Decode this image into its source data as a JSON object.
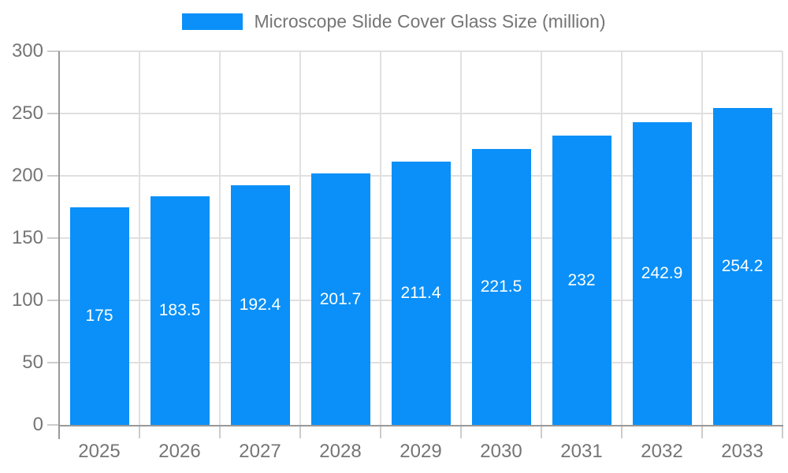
{
  "legend": {
    "label": "Microscope Slide Cover Glass Size (million)"
  },
  "chart_data": {
    "type": "bar",
    "title": "Microscope Slide Cover Glass Size (million)",
    "categories": [
      "2025",
      "2026",
      "2027",
      "2028",
      "2029",
      "2030",
      "2031",
      "2032",
      "2033"
    ],
    "values": [
      175,
      183.5,
      192.4,
      201.7,
      211.4,
      221.5,
      232,
      242.9,
      254.2
    ],
    "xlabel": "",
    "ylabel": "",
    "ylim": [
      0,
      300
    ],
    "y_ticks": [
      0,
      50,
      100,
      150,
      200,
      250,
      300
    ],
    "grid": true,
    "legend_position": "top",
    "bar_color": "#0a90f8",
    "bar_label_color": "#ffffff",
    "axis_text_color": "#757575",
    "axis_line_color": "#999999",
    "grid_color": "#e0e0e0",
    "tick_color": "#cccccc"
  }
}
